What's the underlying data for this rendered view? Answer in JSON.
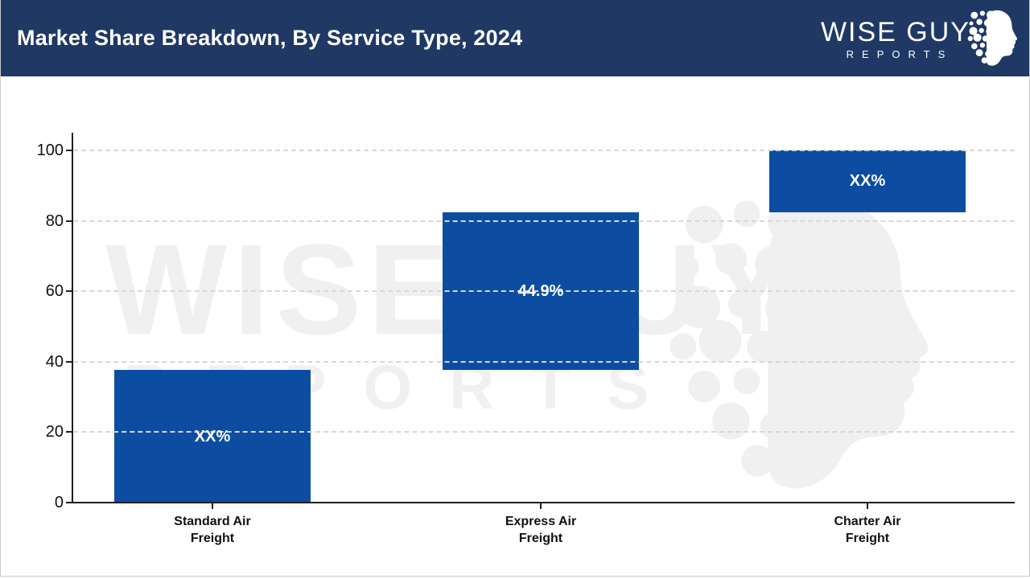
{
  "header": {
    "title": "Market Share Breakdown, By Service Type, 2024",
    "logo": {
      "wordmark": "WISE GUY",
      "subtext": "REPORTS"
    }
  },
  "watermark": {
    "wordmark": "WISE GUY",
    "subtext": "REPORTS"
  },
  "colors": {
    "header_bg": "#1F3864",
    "bar_fill": "#0C4DA2",
    "bar_label": "#FFFFFF",
    "gridline": "#D7D7D7",
    "axis": "#1F1F1F",
    "tick_label": "#111111",
    "watermark": "#F0F0F0",
    "card_border": "#CCCCCC"
  },
  "chart_data": {
    "type": "bar",
    "variant": "stacked-cascade-floating-bars",
    "title": "Market Share Breakdown, By Service Type, 2024",
    "xlabel": "",
    "ylabel": "",
    "ylim": [
      0,
      100
    ],
    "yticks": [
      0,
      20,
      40,
      60,
      80,
      100
    ],
    "grid": "horizontal-dashed-over-bars",
    "legend": "none",
    "categories": [
      "Standard Air Freight",
      "Express Air Freight",
      "Charter Air Freight"
    ],
    "bars": [
      {
        "category": "Standard Air Freight",
        "category_lines": [
          "Standard Air",
          "Freight"
        ],
        "start": 0,
        "end": 37.6,
        "value_label": "XX%"
      },
      {
        "category": "Express Air Freight",
        "category_lines": [
          "Express Air",
          "Freight"
        ],
        "start": 37.6,
        "end": 82.5,
        "value_label": "44.9%",
        "value": 44.9
      },
      {
        "category": "Charter Air Freight",
        "category_lines": [
          "Charter Air",
          "Freight"
        ],
        "start": 82.5,
        "end": 100,
        "value_label": "XX%"
      }
    ]
  }
}
